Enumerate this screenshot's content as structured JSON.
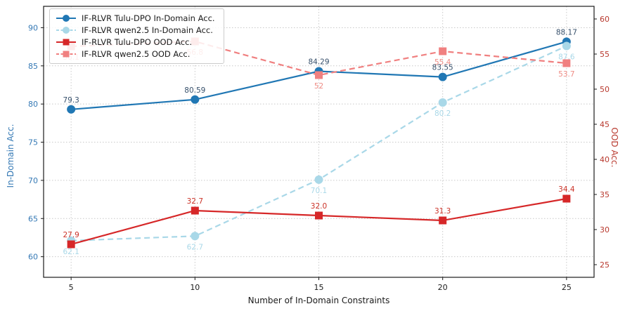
{
  "chart_data": {
    "type": "line",
    "x": [
      5,
      10,
      15,
      20,
      25
    ],
    "x_tick_labels": [
      "5",
      "10",
      "15",
      "20",
      "25"
    ],
    "xlabel": "Number of In-Domain Constraints",
    "grid": true,
    "legend_position": "upper left",
    "left_axis": {
      "label": "In-Domain Acc.",
      "ticks": [
        60,
        65,
        70,
        75,
        80,
        85,
        90
      ],
      "lim": [
        57.3,
        92.8
      ],
      "color": "#3579b5"
    },
    "right_axis": {
      "label": "OOD Acc.",
      "ticks": [
        25,
        30,
        35,
        40,
        45,
        50,
        55,
        60
      ],
      "lim": [
        23.2,
        61.8
      ],
      "color": "#b8392e"
    },
    "series": [
      {
        "name": "IF-RLVR Tulu-DPO In-Domain Acc.",
        "axis": "left",
        "color": "#2077b4",
        "label_color": "#37506b",
        "line": "solid",
        "marker": "circle",
        "label_side": "above",
        "values": [
          79.3,
          80.59,
          84.29,
          83.55,
          88.17
        ],
        "labels": [
          "79.3",
          "80.59",
          "84.29",
          "83.55",
          "88.17"
        ]
      },
      {
        "name": "IF-RLVR qwen2.5 In-Domain Acc.",
        "axis": "left",
        "color": "#a9d8e8",
        "label_color": "#a9d8e8",
        "line": "dashed",
        "marker": "circle",
        "label_side": "below",
        "values": [
          62.1,
          62.7,
          70.1,
          80.2,
          87.6
        ],
        "labels": [
          "62.1",
          "62.7",
          "70.1",
          "80.2",
          "87.6"
        ]
      },
      {
        "name": "IF-RLVR Tulu-DPO OOD Acc.",
        "axis": "right",
        "color": "#d62728",
        "label_color": "#cb3227",
        "line": "solid",
        "marker": "square",
        "label_side": "above",
        "values": [
          27.9,
          32.7,
          32.0,
          31.3,
          34.4
        ],
        "labels": [
          "27.9",
          "32.7",
          "32.0",
          "31.3",
          "34.4"
        ]
      },
      {
        "name": "IF-RLVR qwen2.5 OOD Acc.",
        "axis": "right",
        "color": "#f08080",
        "label_color": "#ee8b84",
        "line": "dashed",
        "marker": "square",
        "label_side": "below",
        "values": [
          56.1,
          56.8,
          52,
          55.4,
          53.7
        ],
        "labels": [
          "56.1",
          "56.8",
          "52",
          "55.4",
          "53.7"
        ]
      }
    ]
  }
}
